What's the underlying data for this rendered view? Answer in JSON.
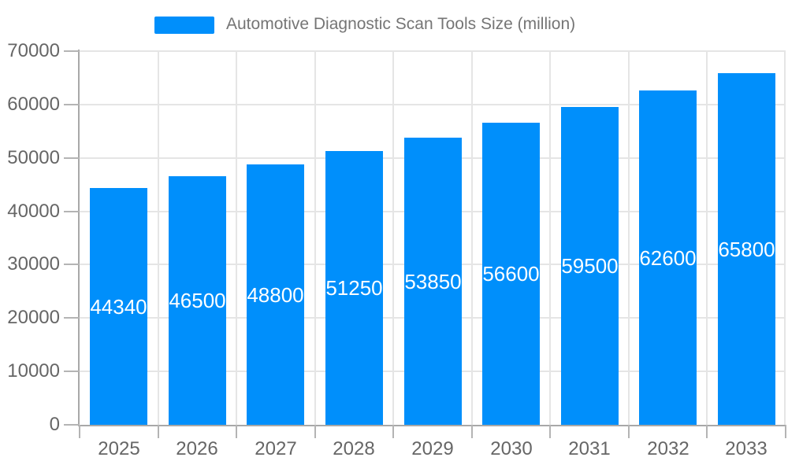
{
  "chart_data": {
    "type": "bar",
    "title": "Automotive Diagnostic Scan Tools Size (million)",
    "categories": [
      "2025",
      "2026",
      "2027",
      "2028",
      "2029",
      "2030",
      "2031",
      "2032",
      "2033"
    ],
    "values": [
      44340,
      46500,
      48800,
      51250,
      53850,
      56600,
      59500,
      62600,
      65800
    ],
    "series": [
      {
        "name": "Automotive Diagnostic Scan Tools Size (million)",
        "values": [
          44340,
          46500,
          48800,
          51250,
          53850,
          56600,
          59500,
          62600,
          65800
        ]
      }
    ],
    "xlabel": "",
    "ylabel": "",
    "ylim": [
      0,
      70000
    ],
    "ytick_step": 10000,
    "ytick_labels": [
      "0",
      "10000",
      "20000",
      "30000",
      "40000",
      "50000",
      "60000",
      "70000"
    ],
    "grid": true,
    "legend_position": "top",
    "data_labels_position": "inside-center",
    "colors": {
      "bar": "#008FFB",
      "data_label_text": "#ffffff",
      "legend_text": "#757575",
      "axis_text": "#666666",
      "axis_line": "#a8a8a8",
      "tick_line": "#b4b4b4",
      "gridline": "#e5e5e5",
      "background": "#ffffff"
    }
  }
}
